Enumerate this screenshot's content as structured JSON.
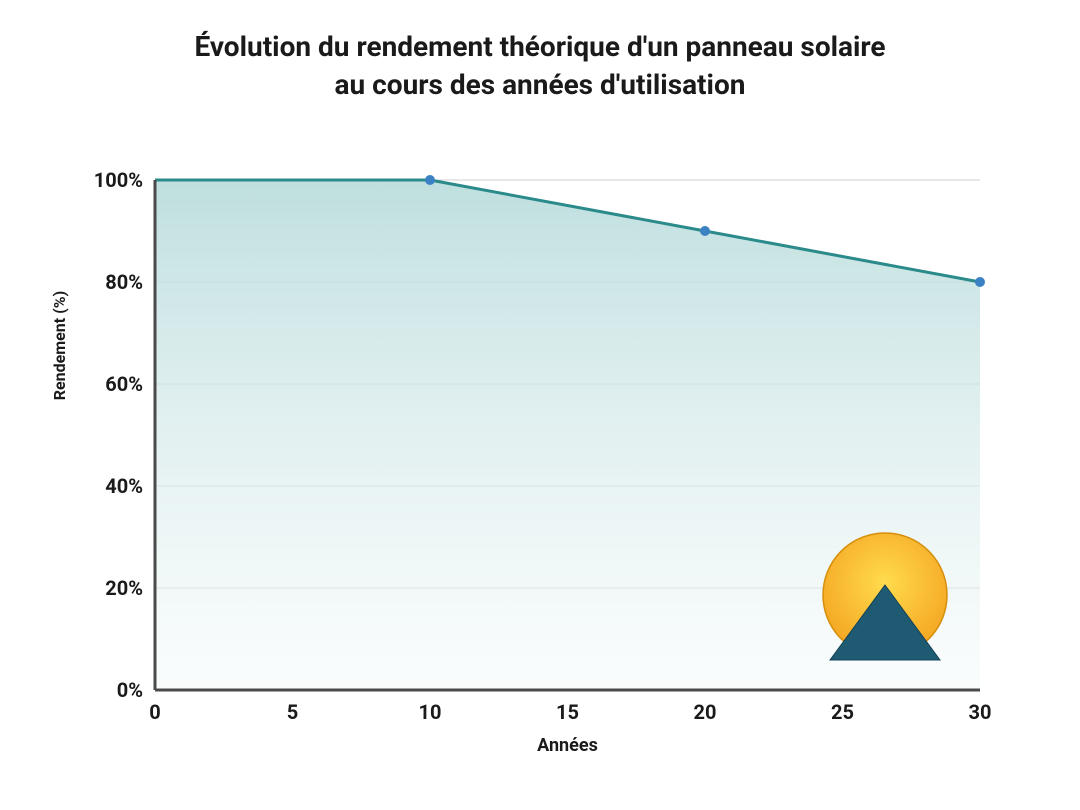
{
  "chart": {
    "type": "area",
    "title_line1": "Évolution du rendement théorique d'un panneau solaire",
    "title_line2": "au cours des années d'utilisation",
    "title_fontsize": 28,
    "x_label": "Années",
    "y_label": "Rendement (%)",
    "label_fontsize": 17,
    "x_values": [
      0,
      5,
      10,
      15,
      20,
      25,
      30
    ],
    "y_ticks": [
      0,
      20,
      40,
      60,
      80,
      100
    ],
    "y_tick_labels": [
      "0%",
      "20%",
      "40%",
      "60%",
      "80%",
      "100%"
    ],
    "ylim": [
      0,
      100
    ],
    "xlim": [
      0,
      30
    ],
    "data_points": [
      {
        "x": 0,
        "y": 100
      },
      {
        "x": 10,
        "y": 100
      },
      {
        "x": 20,
        "y": 90
      },
      {
        "x": 30,
        "y": 80
      }
    ],
    "marker_points": [
      {
        "x": 10,
        "y": 100
      },
      {
        "x": 20,
        "y": 90
      },
      {
        "x": 30,
        "y": 80
      }
    ],
    "line_color": "#2b8a8a",
    "line_width": 3,
    "marker_color": "#3b82c4",
    "marker_radius": 5,
    "fill_top_color": "#b8dbdb",
    "fill_bottom_color": "#f5fafa",
    "grid_color": "#cfcfcf",
    "grid_width": 1,
    "axis_color": "#4a4a4a",
    "axis_width": 3,
    "background_color": "#ffffff",
    "tick_fontsize": 20,
    "tick_fontweight": 700,
    "logo": {
      "sun_fill_top": "#ffdb4d",
      "sun_fill_bottom": "#f5a623",
      "sun_stroke": "#d68f0a",
      "mountain_fill": "#1f5a73",
      "mountain_stroke": "#154254"
    }
  }
}
